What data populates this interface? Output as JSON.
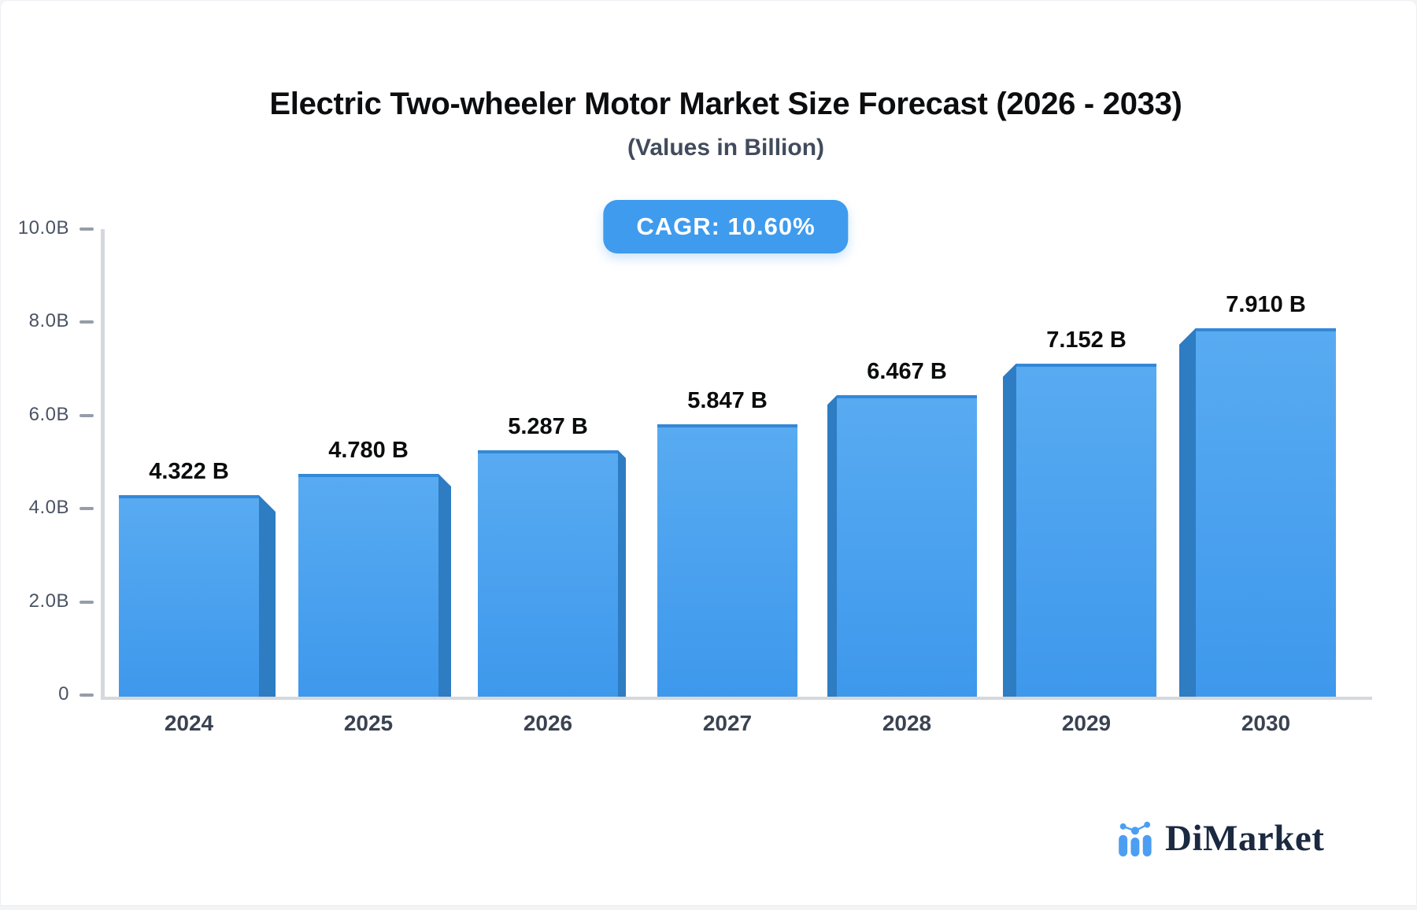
{
  "header": {
    "title": "Electric Two-wheeler Motor Market Size Forecast (2026 - 2033)",
    "subtitle": "(Values in Billion)"
  },
  "badge": {
    "label": "CAGR: 10.60%",
    "background": "#3f9bed",
    "text_color": "#ffffff"
  },
  "chart_data": {
    "type": "bar",
    "title": "Electric Two-wheeler Motor Market Size Forecast (2026 - 2033)",
    "subtitle": "(Values in Billion)",
    "cagr_label": "CAGR: 10.60%",
    "categories": [
      "2024",
      "2025",
      "2026",
      "2027",
      "2028",
      "2029",
      "2030"
    ],
    "values": [
      4.322,
      4.78,
      5.287,
      5.847,
      6.467,
      7.152,
      7.91
    ],
    "value_labels": [
      "4.322 B",
      "4.780 B",
      "5.287 B",
      "5.847 B",
      "6.467 B",
      "7.152 B",
      "7.910 B"
    ],
    "xlabel": "",
    "ylabel": "",
    "ylim": [
      0,
      10
    ],
    "ytick_labels_bottom_up": [
      "0",
      "2.0B",
      "4.0B",
      "6.0B",
      "8.0B",
      "10.0B"
    ],
    "grid": false,
    "legend": false,
    "bar_style": "3d-front-perspective",
    "bar_face_color_top": "#58abf1",
    "bar_face_color_bottom": "#3e98ec",
    "bar_side_color": "#2e7cc2",
    "axis_line_color": "#d5d8dc",
    "tick_color": "#959daa"
  },
  "footer": {
    "brand": "DiMarket",
    "brand_color": "#1b2941",
    "icon_color": "#4b9ef2"
  }
}
